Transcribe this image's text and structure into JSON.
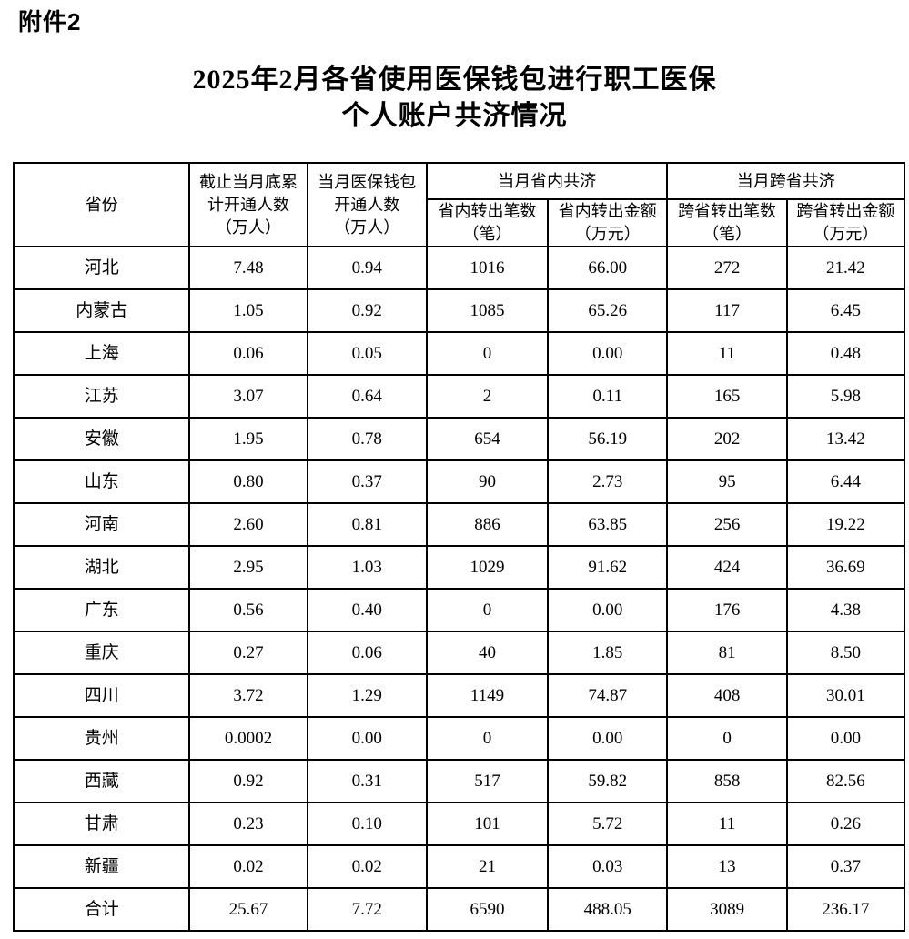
{
  "page": {
    "attachment_label": "附件2",
    "title_line1": "2025年2月各省使用医保钱包进行职工医保",
    "title_line2": "个人账户共济情况"
  },
  "table": {
    "header": {
      "province": "省份",
      "cumulative_opened": "截止当月底累\n计开通人数\n（万人）",
      "monthly_opened": "当月医保钱包\n开通人数\n（万人）",
      "intra_group": "当月省内共济",
      "cross_group": "当月跨省共济",
      "intra_count": "省内转出笔数\n（笔）",
      "intra_amount": "省内转出金额\n（万元）",
      "cross_count": "跨省转出笔数\n（笔）",
      "cross_amount": "跨省转出金额\n（万元）"
    },
    "rows": [
      {
        "province": "河北",
        "cumulative": "7.48",
        "monthly": "0.94",
        "intra_count": "1016",
        "intra_amount": "66.00",
        "cross_count": "272",
        "cross_amount": "21.42"
      },
      {
        "province": "内蒙古",
        "cumulative": "1.05",
        "monthly": "0.92",
        "intra_count": "1085",
        "intra_amount": "65.26",
        "cross_count": "117",
        "cross_amount": "6.45"
      },
      {
        "province": "上海",
        "cumulative": "0.06",
        "monthly": "0.05",
        "intra_count": "0",
        "intra_amount": "0.00",
        "cross_count": "11",
        "cross_amount": "0.48"
      },
      {
        "province": "江苏",
        "cumulative": "3.07",
        "monthly": "0.64",
        "intra_count": "2",
        "intra_amount": "0.11",
        "cross_count": "165",
        "cross_amount": "5.98"
      },
      {
        "province": "安徽",
        "cumulative": "1.95",
        "monthly": "0.78",
        "intra_count": "654",
        "intra_amount": "56.19",
        "cross_count": "202",
        "cross_amount": "13.42"
      },
      {
        "province": "山东",
        "cumulative": "0.80",
        "monthly": "0.37",
        "intra_count": "90",
        "intra_amount": "2.73",
        "cross_count": "95",
        "cross_amount": "6.44"
      },
      {
        "province": "河南",
        "cumulative": "2.60",
        "monthly": "0.81",
        "intra_count": "886",
        "intra_amount": "63.85",
        "cross_count": "256",
        "cross_amount": "19.22"
      },
      {
        "province": "湖北",
        "cumulative": "2.95",
        "monthly": "1.03",
        "intra_count": "1029",
        "intra_amount": "91.62",
        "cross_count": "424",
        "cross_amount": "36.69"
      },
      {
        "province": "广东",
        "cumulative": "0.56",
        "monthly": "0.40",
        "intra_count": "0",
        "intra_amount": "0.00",
        "cross_count": "176",
        "cross_amount": "4.38"
      },
      {
        "province": "重庆",
        "cumulative": "0.27",
        "monthly": "0.06",
        "intra_count": "40",
        "intra_amount": "1.85",
        "cross_count": "81",
        "cross_amount": "8.50"
      },
      {
        "province": "四川",
        "cumulative": "3.72",
        "monthly": "1.29",
        "intra_count": "1149",
        "intra_amount": "74.87",
        "cross_count": "408",
        "cross_amount": "30.01"
      },
      {
        "province": "贵州",
        "cumulative": "0.0002",
        "monthly": "0.00",
        "intra_count": "0",
        "intra_amount": "0.00",
        "cross_count": "0",
        "cross_amount": "0.00"
      },
      {
        "province": "西藏",
        "cumulative": "0.92",
        "monthly": "0.31",
        "intra_count": "517",
        "intra_amount": "59.82",
        "cross_count": "858",
        "cross_amount": "82.56"
      },
      {
        "province": "甘肃",
        "cumulative": "0.23",
        "monthly": "0.10",
        "intra_count": "101",
        "intra_amount": "5.72",
        "cross_count": "11",
        "cross_amount": "0.26"
      },
      {
        "province": "新疆",
        "cumulative": "0.02",
        "monthly": "0.02",
        "intra_count": "21",
        "intra_amount": "0.03",
        "cross_count": "13",
        "cross_amount": "0.37"
      },
      {
        "province": "合计",
        "cumulative": "25.67",
        "monthly": "7.72",
        "intra_count": "6590",
        "intra_amount": "488.05",
        "cross_count": "3089",
        "cross_amount": "236.17"
      }
    ]
  }
}
